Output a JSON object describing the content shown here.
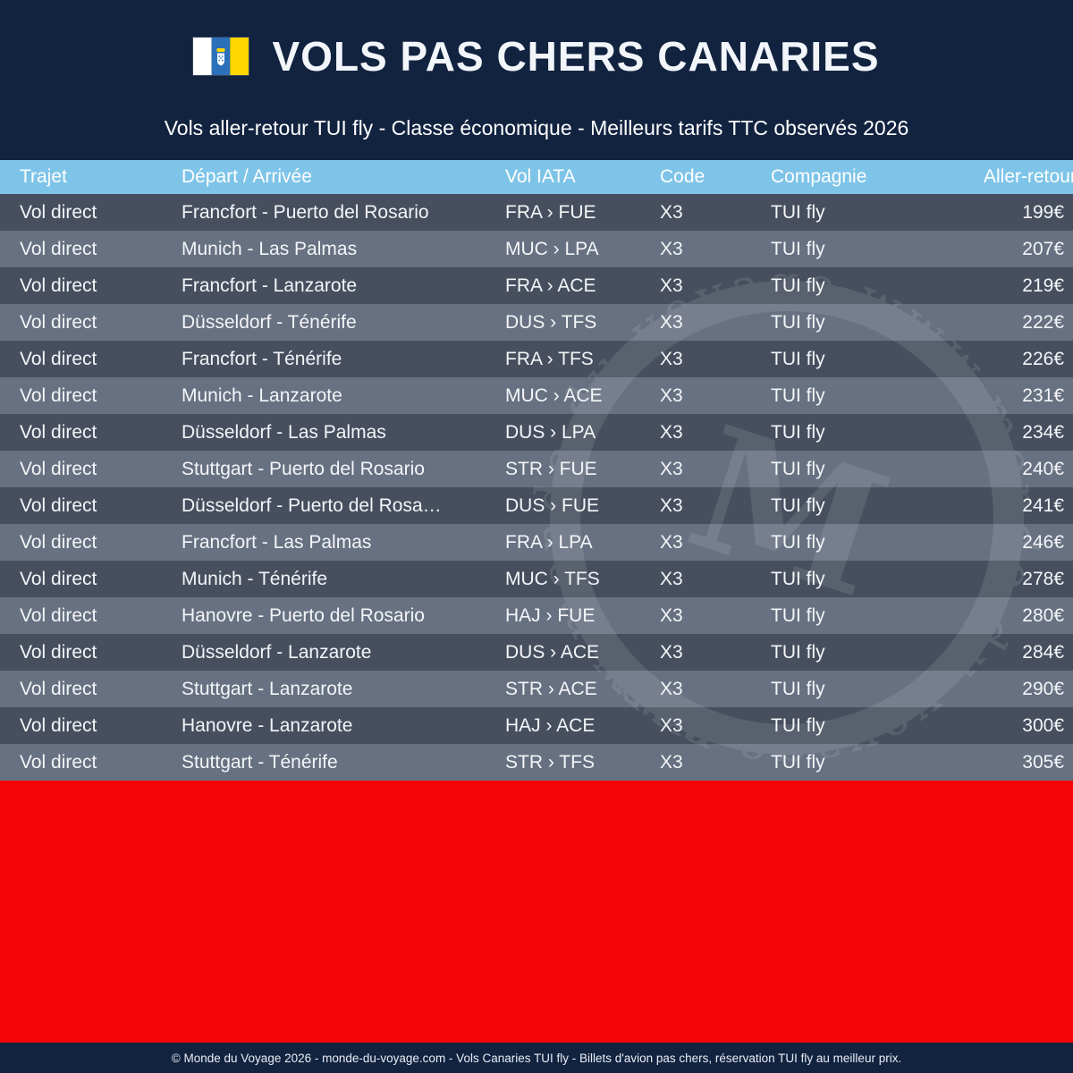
{
  "header": {
    "subtitle": "Vols aller-retour TUI fly - Classe économique - Meilleurs tarifs TTC observés 2026"
  },
  "watermark": {
    "text": "www.monde-du-voyage.com",
    "monogram": "M"
  },
  "footer": {
    "text": "© Monde du Voyage 2026 - monde-du-voyage.com - Vols Canaries TUI fly - Billets d'avion pas chers, réservation TUI fly au meilleur prix."
  },
  "colors": {
    "background": "#122340",
    "header_row": "#7ec4e8",
    "row_dark": "#474f5e",
    "row_light": "#687181",
    "red_banner": "#f50505",
    "flag_white": "#ffffff",
    "flag_blue": "#2b70b9",
    "flag_yellow": "#ffd800"
  },
  "chart_data": {
    "type": "table",
    "title": "VOLS PAS CHERS CANARIES",
    "headers": [
      "Trajet",
      "Départ / Arrivée",
      "Vol IATA",
      "Code",
      "Compagnie",
      "Aller-retour"
    ],
    "rows": [
      [
        "Vol direct",
        "Francfort - Puerto del Rosario",
        "FRA › FUE",
        "X3",
        "TUI fly",
        "199€"
      ],
      [
        "Vol direct",
        "Munich - Las Palmas",
        "MUC › LPA",
        "X3",
        "TUI fly",
        "207€"
      ],
      [
        "Vol direct",
        "Francfort - Lanzarote",
        "FRA › ACE",
        "X3",
        "TUI fly",
        "219€"
      ],
      [
        "Vol direct",
        "Düsseldorf - Ténérife",
        "DUS › TFS",
        "X3",
        "TUI fly",
        "222€"
      ],
      [
        "Vol direct",
        "Francfort - Ténérife",
        "FRA › TFS",
        "X3",
        "TUI fly",
        "226€"
      ],
      [
        "Vol direct",
        "Munich - Lanzarote",
        "MUC › ACE",
        "X3",
        "TUI fly",
        "231€"
      ],
      [
        "Vol direct",
        "Düsseldorf - Las Palmas",
        "DUS › LPA",
        "X3",
        "TUI fly",
        "234€"
      ],
      [
        "Vol direct",
        "Stuttgart - Puerto del Rosario",
        "STR › FUE",
        "X3",
        "TUI fly",
        "240€"
      ],
      [
        "Vol direct",
        "Düsseldorf - Puerto del Rosa…",
        "DUS › FUE",
        "X3",
        "TUI fly",
        "241€"
      ],
      [
        "Vol direct",
        "Francfort - Las Palmas",
        "FRA › LPA",
        "X3",
        "TUI fly",
        "246€"
      ],
      [
        "Vol direct",
        "Munich - Ténérife",
        "MUC › TFS",
        "X3",
        "TUI fly",
        "278€"
      ],
      [
        "Vol direct",
        "Hanovre - Puerto del Rosario",
        "HAJ › FUE",
        "X3",
        "TUI fly",
        "280€"
      ],
      [
        "Vol direct",
        "Düsseldorf - Lanzarote",
        "DUS › ACE",
        "X3",
        "TUI fly",
        "284€"
      ],
      [
        "Vol direct",
        "Stuttgart - Lanzarote",
        "STR › ACE",
        "X3",
        "TUI fly",
        "290€"
      ],
      [
        "Vol direct",
        "Hanovre - Lanzarote",
        "HAJ › ACE",
        "X3",
        "TUI fly",
        "300€"
      ],
      [
        "Vol direct",
        "Stuttgart - Ténérife",
        "STR › TFS",
        "X3",
        "TUI fly",
        "305€"
      ]
    ]
  }
}
